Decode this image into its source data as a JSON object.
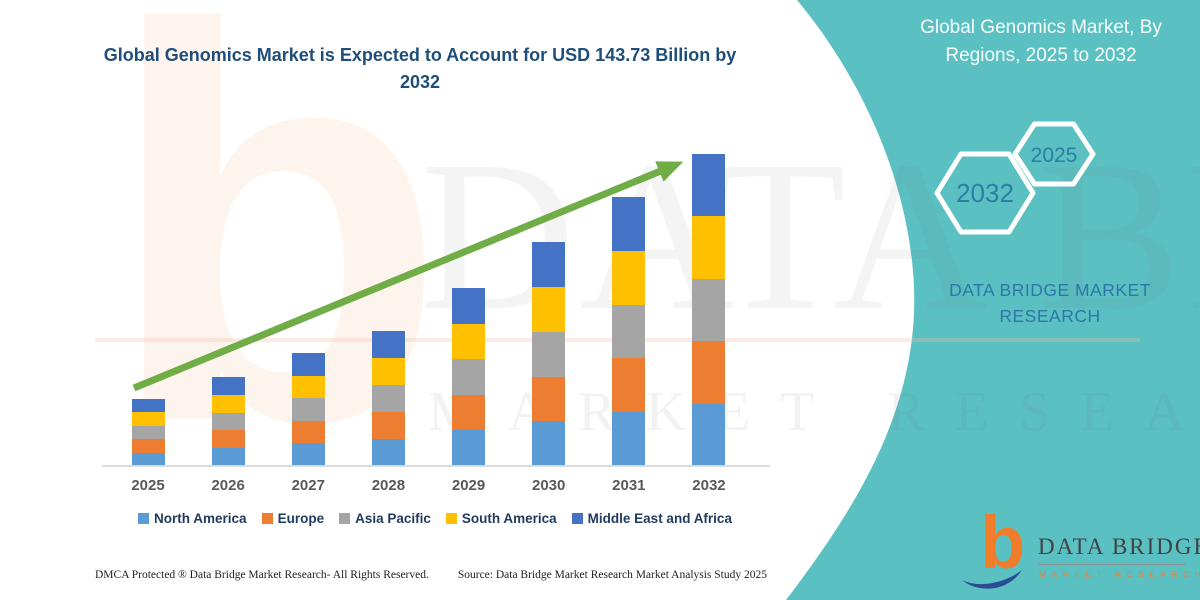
{
  "chart_data": {
    "type": "bar",
    "stacked": true,
    "title": "Global Genomics Market is Expected to Account for USD 143.73 Billion by 2032",
    "unit": "USD Billion",
    "categories": [
      "2025",
      "2026",
      "2027",
      "2028",
      "2029",
      "2030",
      "2031",
      "2032"
    ],
    "series": [
      {
        "name": "North America",
        "color": "#5B9BD5",
        "values": [
          6.2,
          8.2,
          10.4,
          12.4,
          16.4,
          20.6,
          24.8,
          28.75
        ]
      },
      {
        "name": "Europe",
        "color": "#ED7D31",
        "values": [
          6.2,
          8.2,
          10.4,
          12.4,
          16.4,
          20.6,
          24.8,
          28.75
        ]
      },
      {
        "name": "Asia Pacific",
        "color": "#A5A5A5",
        "values": [
          6.2,
          8.2,
          10.4,
          12.4,
          16.4,
          20.6,
          24.8,
          28.75
        ]
      },
      {
        "name": "South America",
        "color": "#FFC000",
        "values": [
          6.2,
          8.2,
          10.4,
          12.4,
          16.4,
          20.6,
          24.8,
          28.75
        ]
      },
      {
        "name": "Middle East and Africa",
        "color": "#4472C4",
        "values": [
          6.2,
          8.2,
          10.4,
          12.4,
          16.4,
          20.6,
          24.8,
          28.73
        ]
      }
    ],
    "totals": [
      31,
      41,
      52,
      62,
      82,
      103,
      124,
      143.73
    ],
    "ylim": [
      0,
      150
    ],
    "grid": false,
    "y_axis_visible": false,
    "legend_position": "bottom",
    "trend_arrow": true
  },
  "side_panel": {
    "title": "Global Genomics Market, By Regions, 2025 to 2032",
    "hexagon_labels": [
      "2032",
      "2025"
    ],
    "brand": "DATA BRIDGE MARKET RESEARCH"
  },
  "logo": {
    "monogram": "b",
    "brand": "DATA BRIDGE",
    "tagline": "MARKET RESEARCH"
  },
  "watermark": {
    "monogram": "b",
    "line1": "DATA BRIDGE",
    "line2": "MARKET RESEARCH"
  },
  "footer": {
    "left": "DMCA Protected ® Data Bridge Market Research-  All Rights Reserved.",
    "right": "Source: Data Bridge Market Research  Market Analysis Study 2025"
  },
  "colors": {
    "panel_teal": "#5bc0c2",
    "title_blue": "#1F4E79",
    "arrow_green": "#70AD47",
    "axis_line": "#dcdcdc",
    "year_label": "#595959",
    "legend_text": "#1f3a5f",
    "hex_label": "#2d7ea6",
    "panel_brand": "#2e77a8",
    "logo_orange": "#ef7d2c",
    "logo_navy": "#2b4b97"
  }
}
